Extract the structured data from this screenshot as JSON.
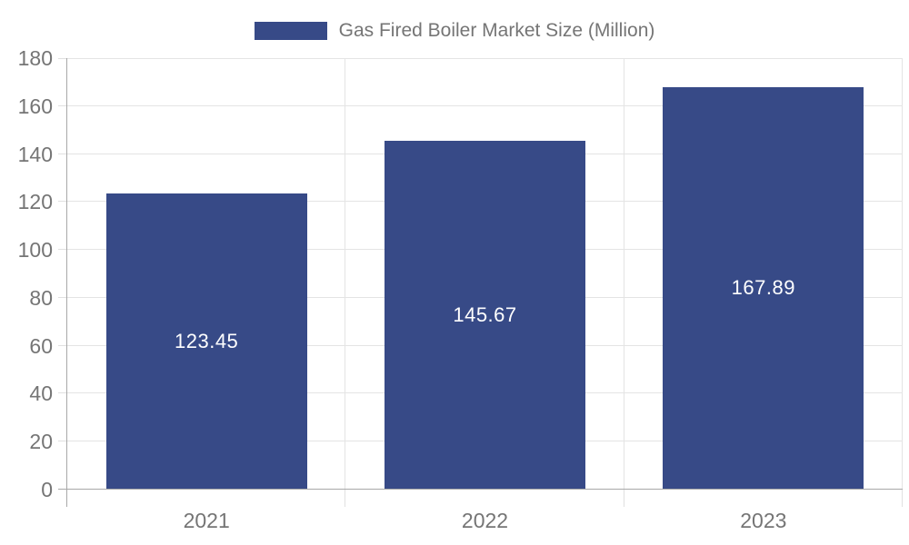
{
  "chart_data": {
    "type": "bar",
    "title": "Gas Fired Boiler Market Size (Million)",
    "categories": [
      "2021",
      "2022",
      "2023"
    ],
    "series": [
      {
        "name": "Gas Fired Boiler Market Size (Million)",
        "values": [
          123.45,
          145.67,
          167.89
        ]
      }
    ],
    "value_labels": [
      "123.45",
      "145.67",
      "167.89"
    ],
    "y_ticks": [
      "0",
      "20",
      "40",
      "60",
      "80",
      "100",
      "120",
      "140",
      "160",
      "180"
    ],
    "ylim": [
      0,
      180
    ],
    "y_step": 20,
    "xlabel": "",
    "ylabel": "",
    "grid": true,
    "legend_position": "top-center",
    "value_label_position": "inside-center"
  },
  "colors": {
    "bar": "#374a87",
    "bar_label_text": "#ffffff",
    "legend_text": "#757575",
    "axis_text": "#757575",
    "axis_line": "#a8a8a8",
    "gridline": "#e4e4e4",
    "tick": "#e0e0e0",
    "background": "#ffffff"
  }
}
